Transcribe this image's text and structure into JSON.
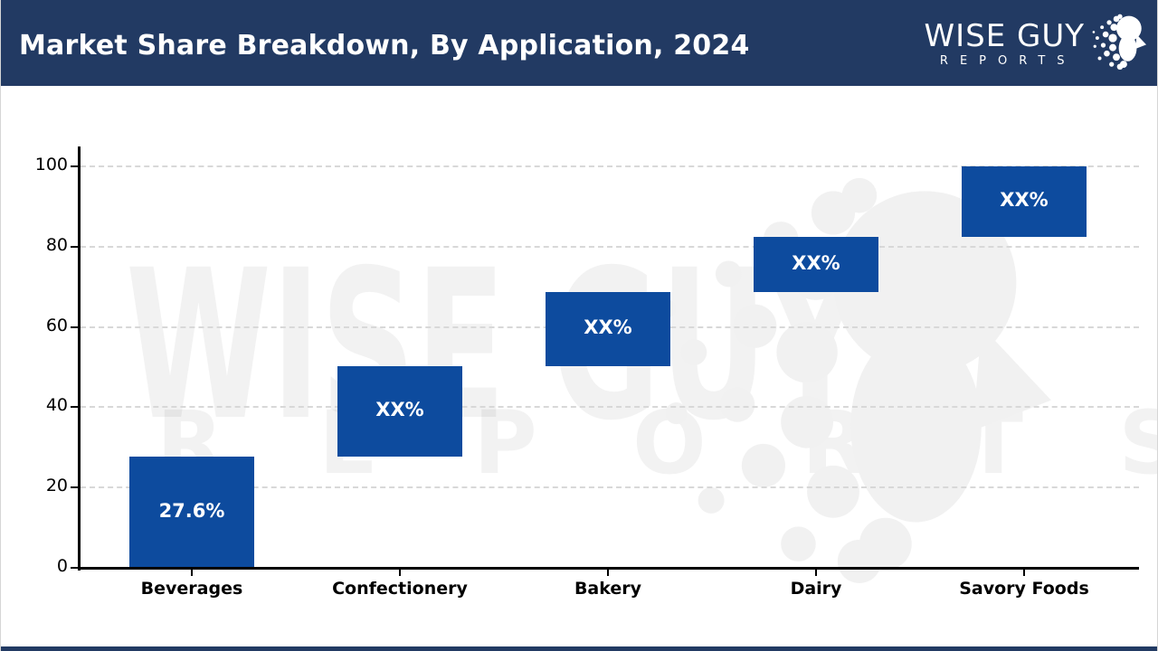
{
  "header": {
    "title": "Market Share Breakdown, By Application, 2024",
    "logo": {
      "line1": "WISE GUY",
      "line2": "REPORTS"
    }
  },
  "watermark": {
    "line1": "WISE GUY",
    "line2": "R E P O R T S"
  },
  "icons": {
    "header_face": "wiseguy-face-icon",
    "watermark_face": "wiseguy-face-watermark-icon"
  },
  "colors": {
    "header_bg": "#223a63",
    "bar": "#0d4b9e",
    "grid": "#d8d8d8",
    "axis": "#000000",
    "bar_label": "#ffffff",
    "watermark": "#f1f1f1"
  },
  "chart_data": {
    "type": "bar",
    "subtype": "waterfall",
    "title": "Market Share Breakdown, By Application, 2024",
    "categories": [
      "Beverages",
      "Confectionery",
      "Bakery",
      "Dairy",
      "Savory Foods"
    ],
    "bars": [
      {
        "category": "Beverages",
        "start": 0,
        "end": 27.6,
        "label": "27.6%"
      },
      {
        "category": "Confectionery",
        "start": 27.6,
        "end": 50.3,
        "label": "XX%"
      },
      {
        "category": "Bakery",
        "start": 50.3,
        "end": 68.6,
        "label": "XX%"
      },
      {
        "category": "Dairy",
        "start": 68.6,
        "end": 82.4,
        "label": "XX%"
      },
      {
        "category": "Savory Foods",
        "start": 82.4,
        "end": 100,
        "label": "XX%"
      }
    ],
    "yticks": [
      0,
      20,
      40,
      60,
      80,
      100
    ],
    "ylim": [
      0,
      105
    ],
    "xlabel": "",
    "ylabel": "",
    "grid": "horizontal-dashed",
    "legend": "none",
    "bar_color": "#0d4b9e",
    "label_color": "#ffffff"
  }
}
